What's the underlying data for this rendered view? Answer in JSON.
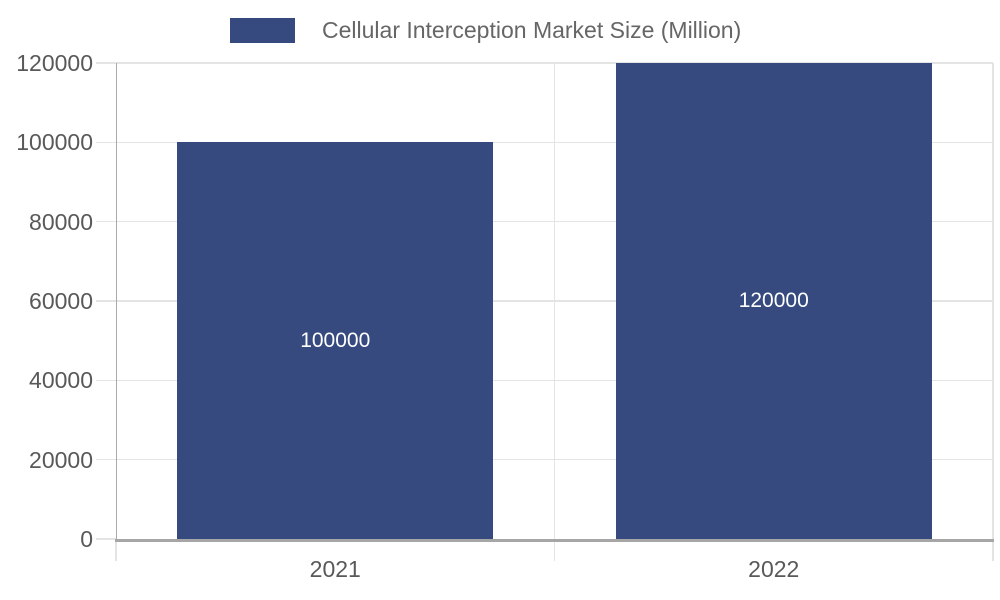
{
  "chart_data": {
    "type": "bar",
    "legend": "Cellular Interception Market Size (Million)",
    "legend_position": "top",
    "categories": [
      "2021",
      "2022"
    ],
    "values": [
      100000,
      120000
    ],
    "bar_labels": [
      "100000",
      "120000"
    ],
    "ylim": [
      0,
      120000
    ],
    "y_ticks": [
      0,
      20000,
      40000,
      60000,
      80000,
      100000,
      120000
    ],
    "grid": true,
    "bar_width_fraction": 0.72,
    "colors": {
      "bar": "#364a7f",
      "bar_label_text": "#ffffff",
      "axis_text": "#595959",
      "legend_text": "#666666",
      "grid_line": "#e4e4e4",
      "axis_line": "#a6a6a6",
      "axis_line_light": "#a9a9a9",
      "background": "#ffffff"
    }
  }
}
